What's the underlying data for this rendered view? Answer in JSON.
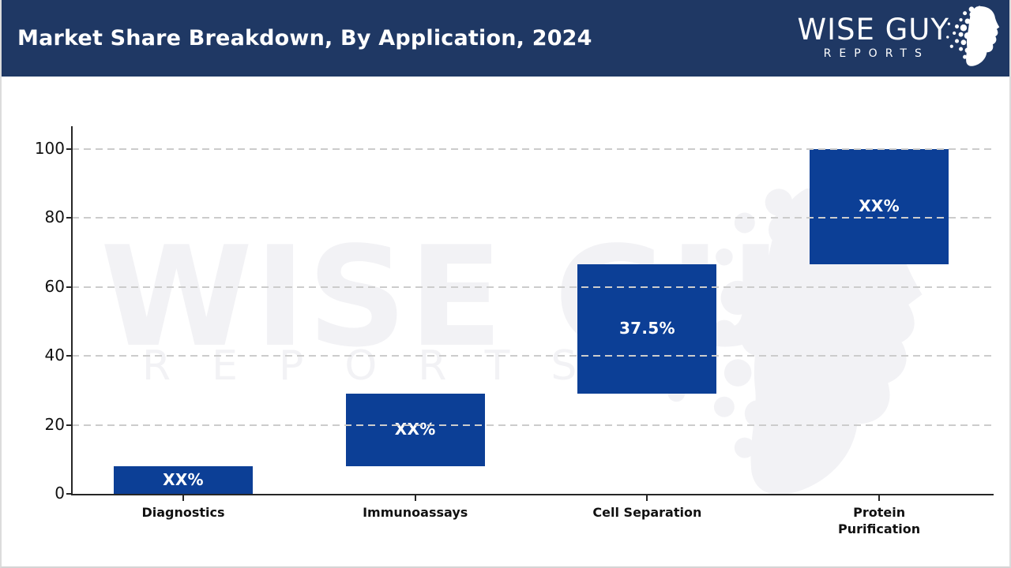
{
  "header": {
    "title": "Market Share Breakdown, By Application, 2024",
    "logo": {
      "line1": "WISE GUY",
      "line2": "REPORTS",
      "face_icon": "dotted-head-profile"
    }
  },
  "watermark": {
    "line1": "WISE GUY",
    "line2": "REPORTS",
    "face_icon": "dotted-head-profile"
  },
  "colors": {
    "header_bg": "#1f3864",
    "bar": "#0c3f96",
    "grid": "#cccccc",
    "watermark": "#f2f2f5",
    "axis": "#262626",
    "bar_label_text": "#ffffff"
  },
  "chart_data": {
    "type": "bar",
    "subtype": "floating-segment-breakdown",
    "title": "Market Share Breakdown, By Application, 2024",
    "xlabel": "",
    "ylabel": "",
    "categories": [
      "Diagnostics",
      "Immunoassays",
      "Cell Separation",
      "Protein Purification"
    ],
    "bars": [
      {
        "category": "Diagnostics",
        "start": 0,
        "end": 8,
        "value": 8,
        "label": "XX%"
      },
      {
        "category": "Immunoassays",
        "start": 8,
        "end": 29,
        "value": 21,
        "label": "XX%"
      },
      {
        "category": "Cell Separation",
        "start": 29,
        "end": 66.5,
        "value": 37.5,
        "label": "37.5%"
      },
      {
        "category": "Protein Purification",
        "start": 66.5,
        "end": 100,
        "value": 33.5,
        "label": "XX%"
      }
    ],
    "yticks": [
      0,
      20,
      40,
      60,
      80,
      100
    ],
    "ylim": [
      0,
      106
    ],
    "grid": "horizontal dashed, drawn over bars",
    "legend": "none"
  }
}
